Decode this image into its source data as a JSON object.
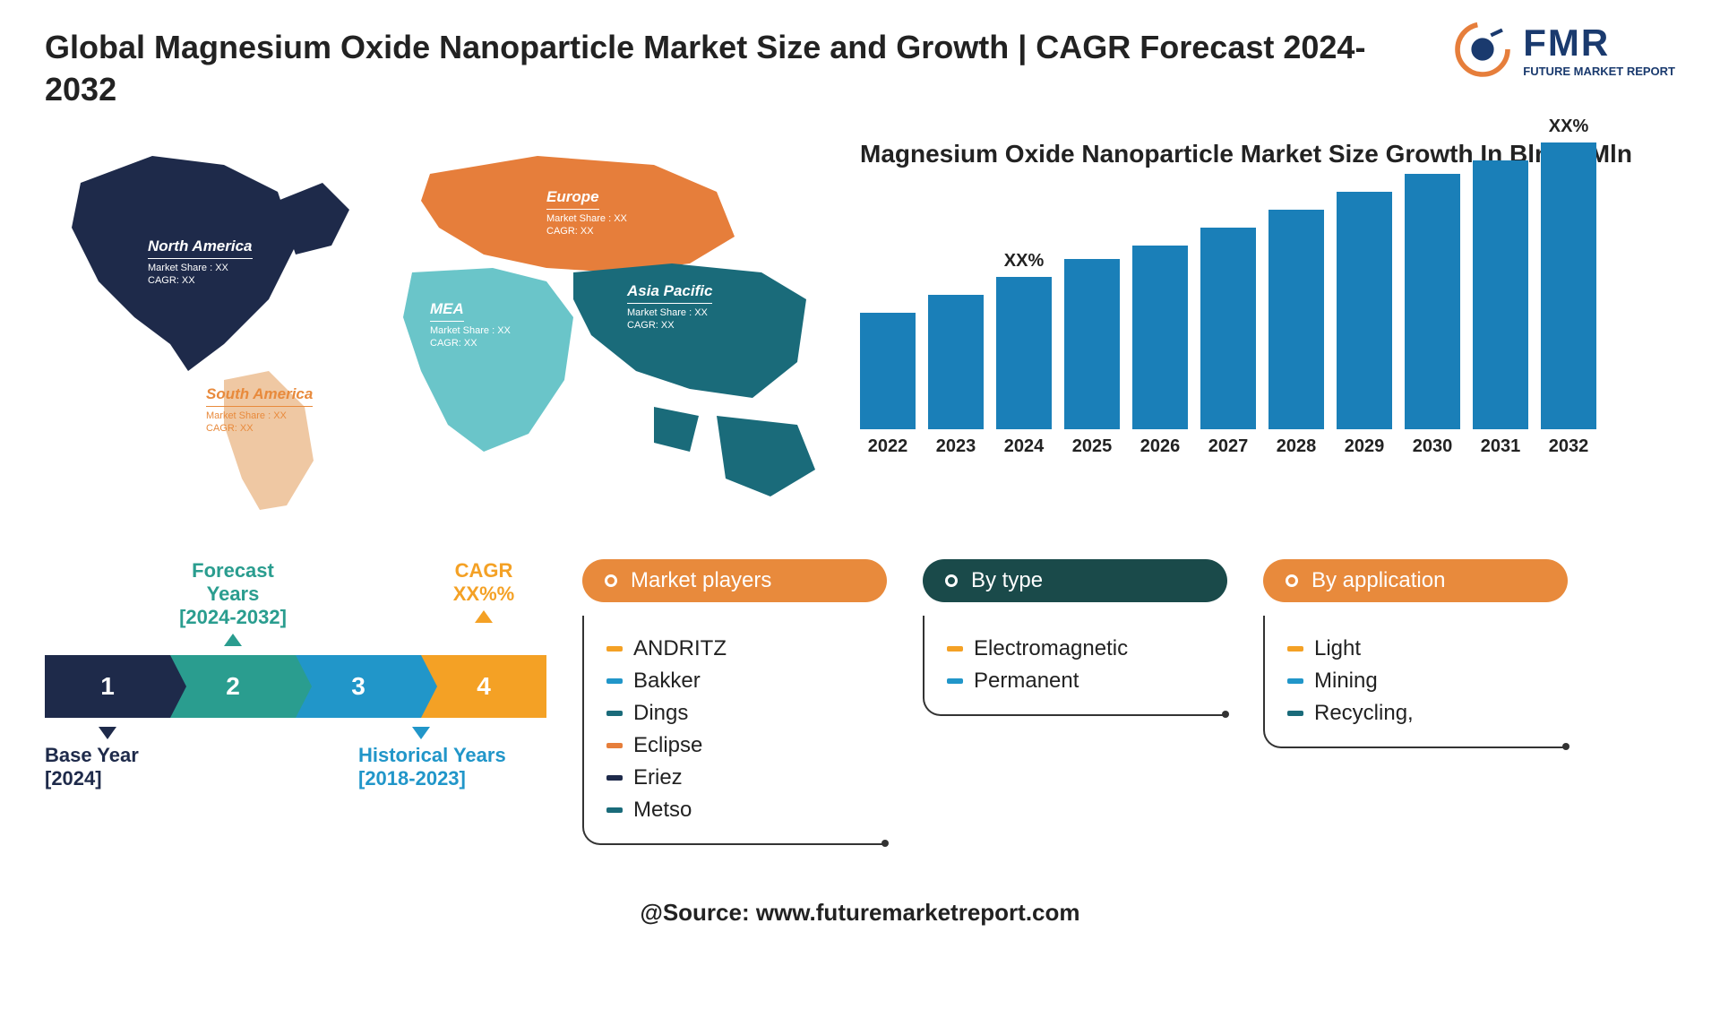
{
  "title": "Global Magnesium Oxide Nanoparticle Market Size and Growth | CAGR Forecast 2024-2032",
  "logo": {
    "fmr": "FMR",
    "sub": "FUTURE MARKET REPORT"
  },
  "map": {
    "regions": {
      "na": {
        "name": "North America",
        "share": "Market Share : XX",
        "cagr": "CAGR: XX",
        "color": "#1e2a4a"
      },
      "sa": {
        "name": "South America",
        "share": "Market Share : XX",
        "cagr": "CAGR: XX",
        "color": "#efc8a3"
      },
      "eu": {
        "name": "Europe",
        "share": "Market Share : XX",
        "cagr": "CAGR: XX",
        "color": "#e67e3b"
      },
      "mea": {
        "name": "MEA",
        "share": "Market Share : XX",
        "cagr": "CAGR: XX",
        "color": "#6ac5c9"
      },
      "ap": {
        "name": "Asia Pacific",
        "share": "Market Share : XX",
        "cagr": "CAGR: XX",
        "color": "#1a6b7a"
      }
    }
  },
  "chart": {
    "title": "Magnesium Oxide Nanoparticle Market Size Growth In Bln or Mln",
    "type": "bar",
    "bar_color": "#1a7fb8",
    "years": [
      "2022",
      "2023",
      "2024",
      "2025",
      "2026",
      "2027",
      "2028",
      "2029",
      "2030",
      "2031",
      "2032"
    ],
    "heights": [
      130,
      150,
      170,
      190,
      205,
      225,
      245,
      265,
      285,
      300,
      320
    ],
    "top_labels": {
      "2": "XX%",
      "10": "XX%"
    },
    "label_fontsize": 20
  },
  "timeline": {
    "forecast_label": "Forecast Years",
    "forecast_range": "[2024-2032]",
    "cagr_label": "CAGR",
    "cagr_value": "XX%%",
    "base_label": "Base Year",
    "base_value": "[2024]",
    "hist_label": "Historical Years",
    "hist_range": "[2018-2023]",
    "segments": [
      "1",
      "2",
      "3",
      "4"
    ],
    "colors": {
      "navy": "#1e2a4a",
      "teal": "#2a9d8f",
      "blue": "#2196c9",
      "orange": "#f4a125"
    }
  },
  "cards": {
    "players": {
      "title": "Market players",
      "items": [
        {
          "label": "ANDRITZ",
          "color": "#f4a125"
        },
        {
          "label": "Bakker",
          "color": "#2196c9"
        },
        {
          "label": "Dings",
          "color": "#1a6b7a"
        },
        {
          "label": "Eclipse",
          "color": "#e67e3b"
        },
        {
          "label": "Eriez",
          "color": "#1e2a4a"
        },
        {
          "label": "Metso",
          "color": "#1a6b7a"
        }
      ]
    },
    "type": {
      "title": "By type",
      "items": [
        {
          "label": "Electromagnetic",
          "color": "#f4a125"
        },
        {
          "label": "Permanent",
          "color": "#2196c9"
        }
      ]
    },
    "application": {
      "title": "By application",
      "items": [
        {
          "label": "Light",
          "color": "#f4a125"
        },
        {
          "label": "Mining",
          "color": "#2196c9"
        },
        {
          "label": "Recycling,",
          "color": "#1a6b7a"
        }
      ]
    }
  },
  "source": "@Source: www.futuremarketreport.com"
}
